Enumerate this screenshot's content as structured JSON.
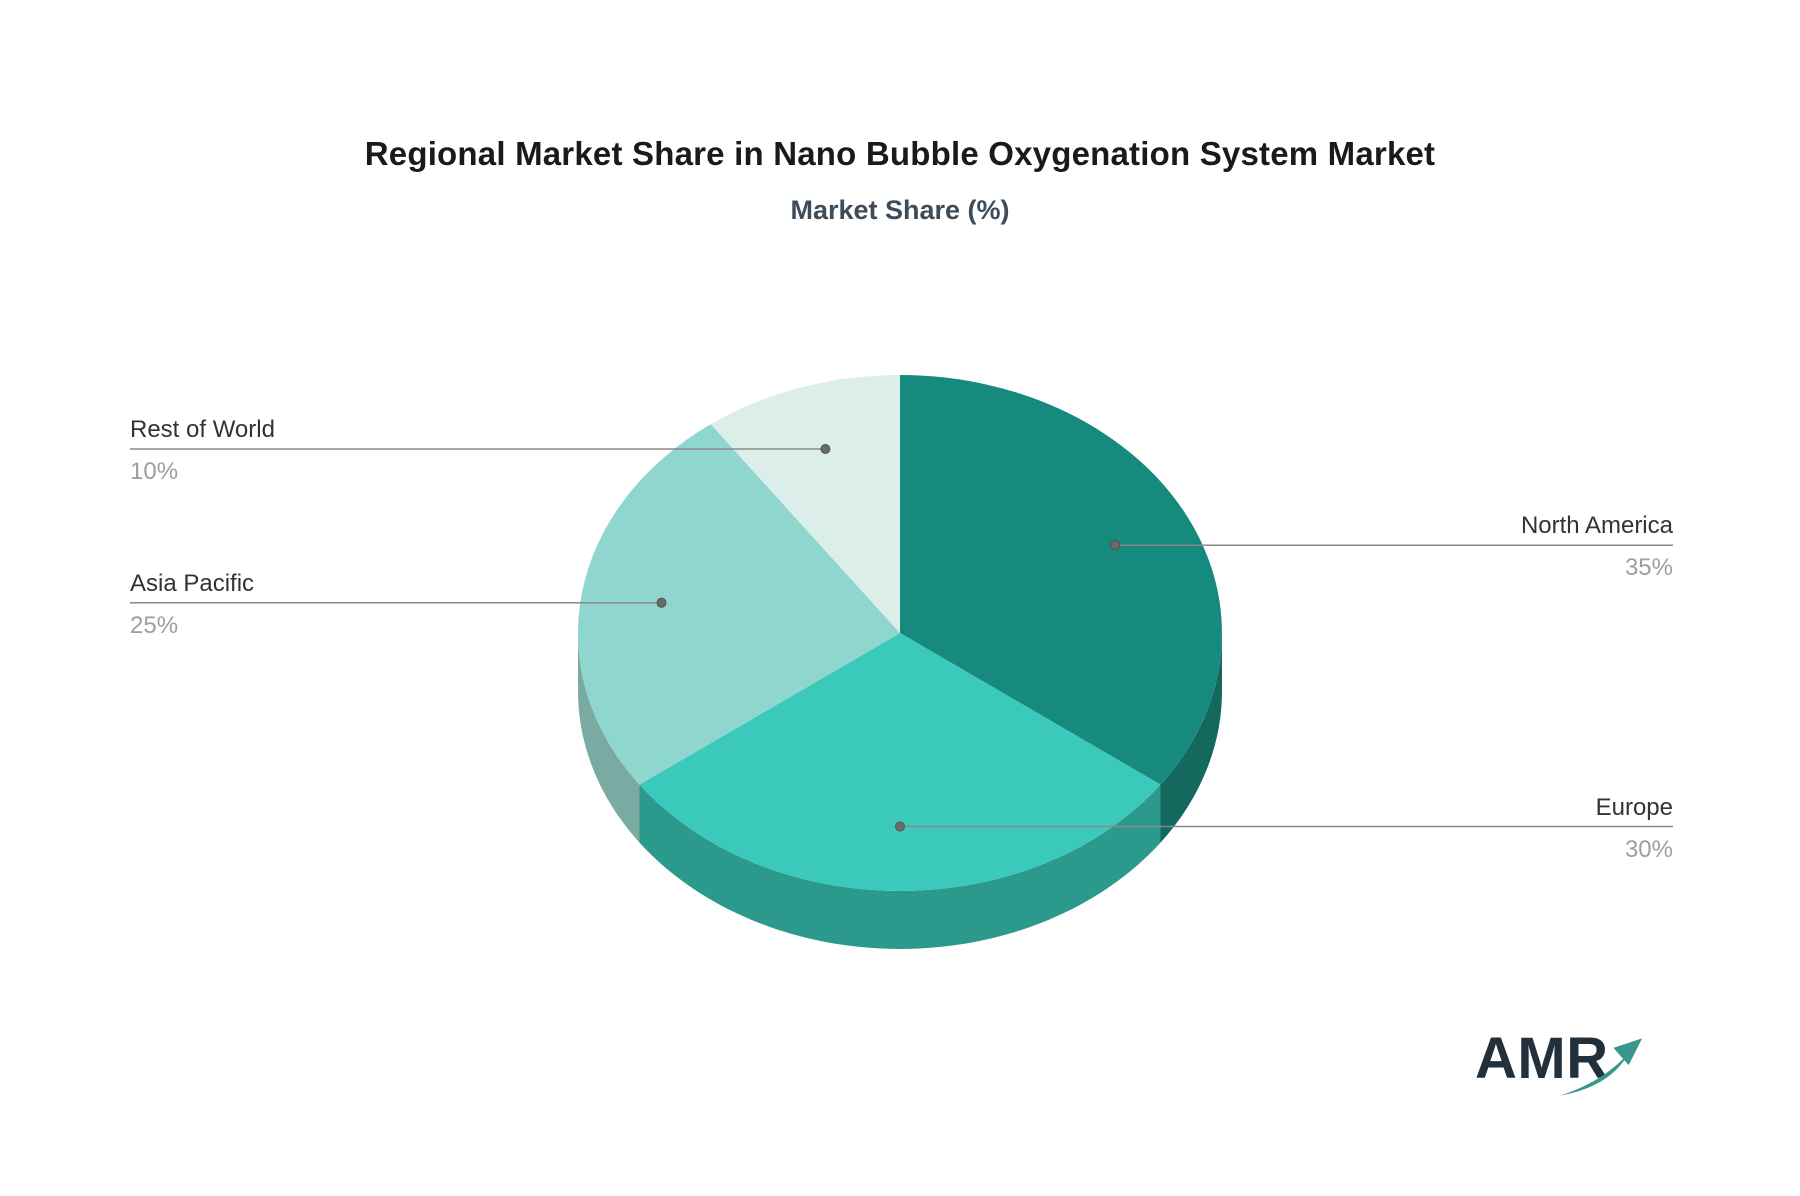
{
  "title": "Regional Market Share in Nano Bubble Oxygenation System Market",
  "subtitle": "Market Share (%)",
  "chart_data": {
    "type": "pie",
    "style": "3d",
    "title": "Regional Market Share in Nano Bubble Oxygenation System Market",
    "subtitle": "Market Share (%)",
    "unit": "%",
    "start_angle_deg": 0,
    "direction": "clockwise",
    "legend_position": "callout-labels",
    "slices": [
      {
        "label": "North America",
        "value": 35,
        "display": "35%",
        "color": "#178a7e",
        "side_color": "#14695f",
        "callout_side": "right"
      },
      {
        "label": "Europe",
        "value": 30,
        "display": "30%",
        "color": "#3bc9bb",
        "side_color": "#2b9a8d",
        "callout_side": "right"
      },
      {
        "label": "Asia Pacific",
        "value": 25,
        "display": "25%",
        "color": "#8ed6ce",
        "side_color": "#7aaba3",
        "callout_side": "left"
      },
      {
        "label": "Rest of World",
        "value": 10,
        "display": "10%",
        "color": "#dceeea",
        "side_color": "#c2ddd8",
        "callout_side": "left"
      }
    ]
  },
  "colors": {
    "background": "#ffffff",
    "title": "#1a1a1a",
    "subtitle": "#3e4c59",
    "callout_label": "#333333",
    "callout_value": "#9e9e9e",
    "leader_line": "#8a8a8a",
    "leader_dot": "#6a6a6a"
  },
  "logo": {
    "text": "AMR",
    "text_color": "#22303c",
    "arrow_color": "#39968c",
    "arrow_icon": "growth-arrow"
  }
}
